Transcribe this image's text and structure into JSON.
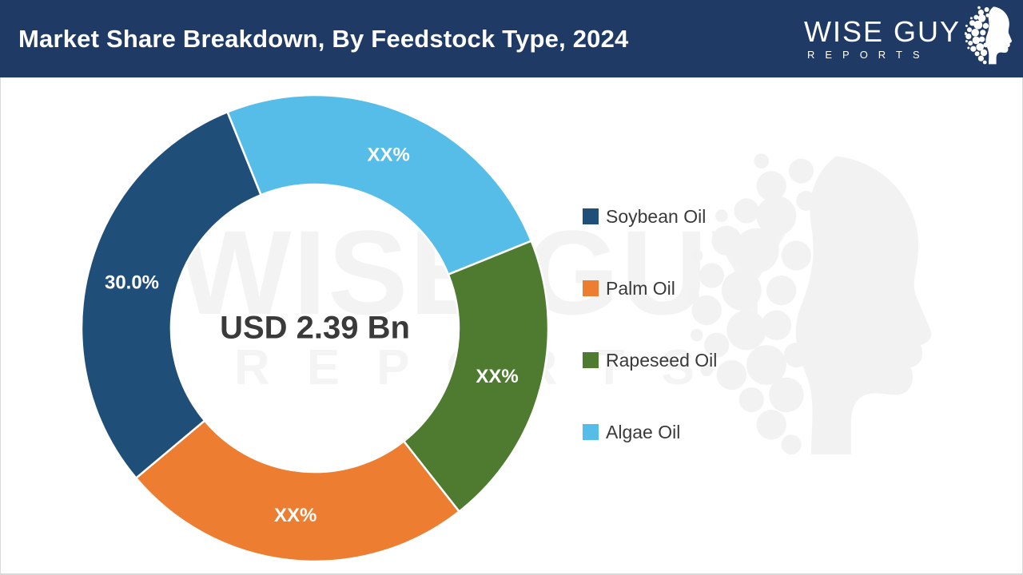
{
  "header": {
    "title": "Market Share Breakdown, By Feedstock Type, 2024",
    "logo": {
      "line1": "WISE GUY",
      "line2": "REPORTS"
    }
  },
  "watermark": {
    "line1": "WISE GUY",
    "line2": "REPORTS"
  },
  "chart_data": {
    "type": "pie",
    "subtype": "donut",
    "title": "Market Share Breakdown, By Feedstock Type, 2024",
    "center_label": "USD 2.39 Bn",
    "start_angle_deg": 112,
    "direction": "counterclockwise",
    "inner_radius_ratio": 0.615,
    "legend_position": "right",
    "segments": [
      {
        "name": "Soybean Oil",
        "display_label": "30.0%",
        "value_pct": 30.0,
        "color": "#1F4E79"
      },
      {
        "name": "Palm Oil",
        "display_label": "XX%",
        "value_pct": 24.5,
        "color": "#ED7D31"
      },
      {
        "name": "Rapeseed Oil",
        "display_label": "XX%",
        "value_pct": 20.5,
        "color": "#4E7B2F"
      },
      {
        "name": "Algae Oil",
        "display_label": "XX%",
        "value_pct": 25.0,
        "color": "#56BDE8"
      }
    ]
  },
  "colors": {
    "header_bg": "#203a66",
    "watermark": "#f3f3f3",
    "center_text": "#3a3a3a",
    "border": "#d9d9d9"
  }
}
